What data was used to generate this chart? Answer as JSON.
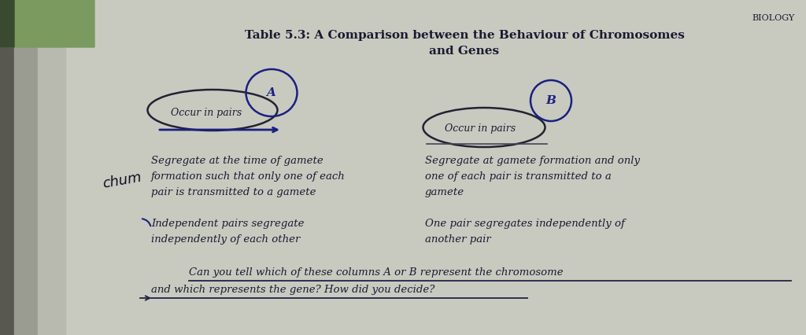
{
  "page_bg": "#c8cac0",
  "left_bg": "#b0b2a8",
  "left_dark": "#606258",
  "top_left_green": "#6a8a50",
  "header_label": "BIOLOGY",
  "title_line1": "Table 5.3: A Comparison between the Behaviour of Chromosomes",
  "title_line2": "and Genes",
  "col_a_label": "A",
  "col_b_label": "B",
  "oval_a_text": "Occur in pairs",
  "oval_b_text": "Occur in pairs",
  "row1_col_a_lines": [
    "Segregate at the time of gamete",
    "formation such that only one of each",
    "pair is transmitted to a gamete"
  ],
  "row1_col_b_lines": [
    "Segregate at gamete formation and only",
    "one of each pair is transmitted to a",
    "gamete"
  ],
  "row2_col_a_lines": [
    "Independent pairs segregate",
    "independently of each other"
  ],
  "row2_col_b_lines": [
    "One pair segregates independently of",
    "another pair"
  ],
  "question_line1": "Can you tell which of these columns A or B represent the chromosome",
  "question_line2": "and which represents the gene? How did you decide?",
  "side_label": "chum",
  "font_dark": "#1a1a30",
  "font_blue": "#1a2080",
  "handwrite_dark": "#111122"
}
